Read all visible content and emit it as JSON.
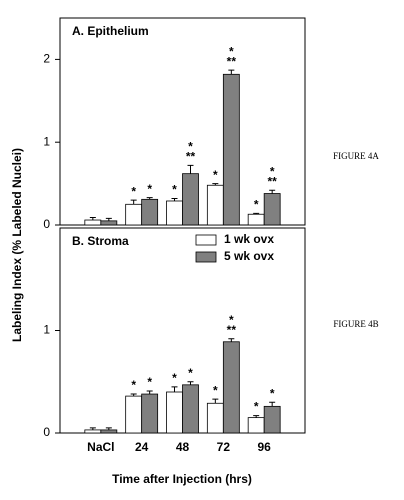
{
  "ylabel": "Labeling Index (% Labeled Nuclei)",
  "xlabel": "Time after Injection (hrs)",
  "figure_labels": [
    "FIGURE 4A",
    "FIGURE 4B"
  ],
  "chart_data": [
    {
      "type": "bar",
      "title": "A. Epithelium",
      "ylim": [
        0,
        2.5
      ],
      "yticks": [
        0,
        1,
        2
      ],
      "series": [
        {
          "color": "#ffffff",
          "values": [
            0.06,
            0.25,
            0.29,
            0.48,
            0.13
          ],
          "errors": [
            0.03,
            0.05,
            0.03,
            0.02,
            0.01
          ],
          "annotations": [
            null,
            [
              "*"
            ],
            [
              "*"
            ],
            [
              "*"
            ],
            [
              "*"
            ]
          ]
        },
        {
          "color": "#808080",
          "values": [
            0.05,
            0.31,
            0.62,
            1.82,
            0.38
          ],
          "errors": [
            0.03,
            0.02,
            0.1,
            0.05,
            0.04
          ],
          "annotations": [
            null,
            [
              "*"
            ],
            [
              "*",
              "**"
            ],
            [
              "*",
              "**"
            ],
            [
              "*",
              "**"
            ]
          ]
        }
      ]
    },
    {
      "type": "bar",
      "title": "B. Stroma",
      "categories": [
        "NaCl",
        "24",
        "48",
        "72",
        "96"
      ],
      "ylim": [
        0,
        2
      ],
      "yticks": [
        0,
        1
      ],
      "series": [
        {
          "name": "1 wk ovx",
          "color": "#ffffff",
          "values": [
            0.03,
            0.36,
            0.4,
            0.29,
            0.15
          ],
          "errors": [
            0.02,
            0.02,
            0.05,
            0.04,
            0.02
          ],
          "annotations": [
            null,
            [
              "*"
            ],
            [
              "*"
            ],
            [
              "*"
            ],
            [
              "*"
            ]
          ]
        },
        {
          "name": "5 wk ovx",
          "color": "#808080",
          "values": [
            0.03,
            0.38,
            0.47,
            0.89,
            0.26
          ],
          "errors": [
            0.02,
            0.03,
            0.03,
            0.03,
            0.04
          ],
          "annotations": [
            null,
            [
              "*"
            ],
            [
              "*"
            ],
            [
              "*",
              "**"
            ],
            [
              "*"
            ]
          ]
        }
      ]
    }
  ]
}
